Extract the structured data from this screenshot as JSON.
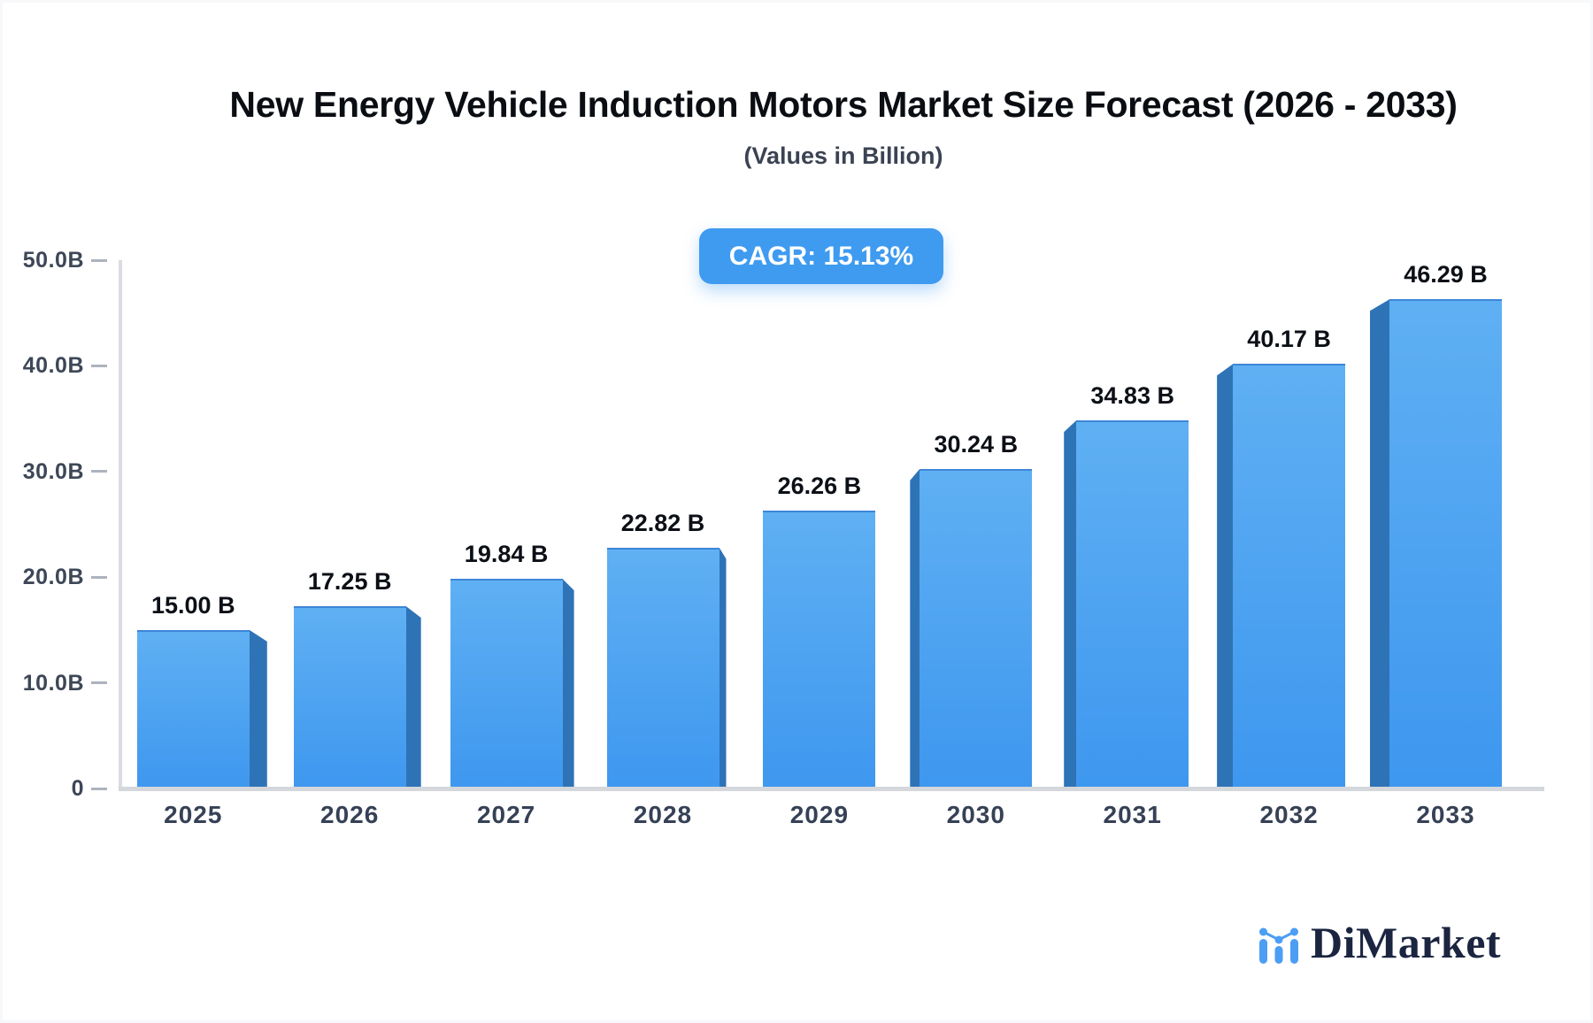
{
  "page": {
    "background": "#eceef1",
    "card_background": "#ffffff"
  },
  "header": {
    "title": "New Energy Vehicle Induction Motors Market Size Forecast (2026 - 2033)",
    "subtitle": "(Values in Billion)"
  },
  "badge": {
    "label": "CAGR: 15.13%",
    "bg_color": "#3e9bf0",
    "text_color": "#ffffff"
  },
  "chart_data": {
    "type": "bar",
    "title": "New Energy Vehicle Induction Motors Market Size Forecast (2026 - 2033)",
    "subtitle": "(Values in Billion)",
    "categories": [
      "2025",
      "2026",
      "2027",
      "2028",
      "2029",
      "2030",
      "2031",
      "2032",
      "2033"
    ],
    "values": [
      15.0,
      17.25,
      19.84,
      22.82,
      26.26,
      30.24,
      34.83,
      40.17,
      46.29
    ],
    "value_labels": [
      "15.00 B",
      "17.25 B",
      "19.84 B",
      "22.82 B",
      "26.26 B",
      "30.24 B",
      "34.83 B",
      "40.17 B",
      "46.29 B"
    ],
    "cagr_percent": 15.13,
    "xlabel": "",
    "ylabel": "",
    "ylim": [
      0,
      50
    ],
    "y_ticks": [
      "50.0B",
      "40.0B",
      "30.0B",
      "20.0B",
      "10.0B",
      "0"
    ],
    "y_tick_values": [
      50,
      40,
      30,
      20,
      10,
      0
    ],
    "grid": false,
    "legend_position": "none",
    "bar_style": {
      "face_top_color": "#5fb0f3",
      "face_bottom_color": "#3e97ef",
      "top_edge_color": "#3d86d8",
      "side_color": "#2f73b7",
      "effect": "3d-extruded-toward-center"
    },
    "axis_colors": {
      "line": "#d9dce0",
      "tick_dash": "#adb3bd",
      "tick_label": "#3d4757"
    }
  },
  "logo": {
    "text": "DiMarket",
    "text_color": "#1b2540",
    "icon": "mini-bar-line-chart-icon",
    "icon_color": "#4c9ef4"
  }
}
